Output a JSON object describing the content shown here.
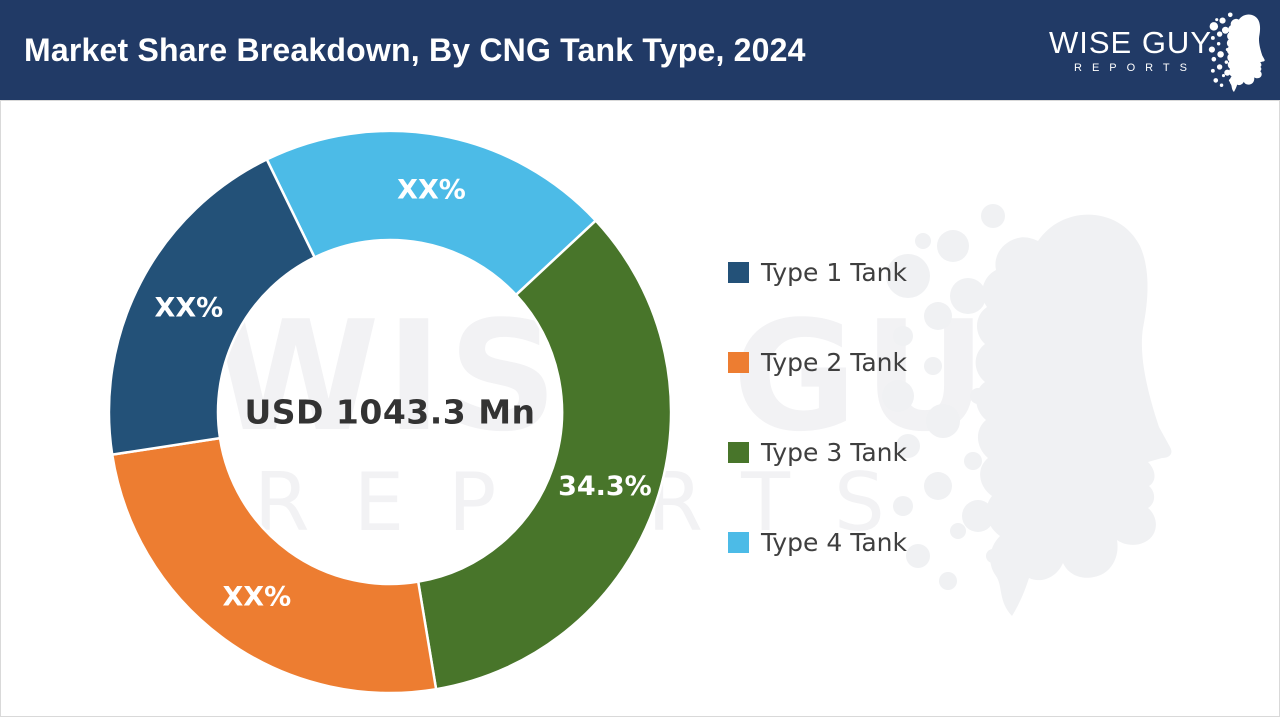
{
  "header": {
    "title": "Market Share Breakdown, By CNG Tank Type, 2024",
    "logo": {
      "line1": "WISE GUY",
      "line2": "REPORTS"
    }
  },
  "watermark": {
    "line1": "WISE GUY",
    "line2": "REPORTS"
  },
  "chart_data": {
    "type": "pie",
    "subtype": "donut",
    "title": "Market Share Breakdown, By CNG Tank Type, 2024",
    "center_label": "USD 1043.3 Mn",
    "start_angle_deg": -26,
    "legend_position": "right",
    "segments": [
      {
        "name": "Type 4 Tank",
        "label": "XX%",
        "pct": 20.3,
        "color": "#4cbbe7"
      },
      {
        "name": "Type 3 Tank",
        "label": "34.3%",
        "pct": 34.3,
        "color": "#48752a"
      },
      {
        "name": "Type 2 Tank",
        "label": "XX%",
        "pct": 25.2,
        "color": "#ed7d31"
      },
      {
        "name": "Type 1 Tank",
        "label": "XX%",
        "pct": 20.2,
        "color": "#235178"
      }
    ],
    "legend": [
      {
        "name": "Type 1 Tank",
        "color": "#235178"
      },
      {
        "name": "Type 2 Tank",
        "color": "#ed7d31"
      },
      {
        "name": "Type 3 Tank",
        "color": "#48752a"
      },
      {
        "name": "Type 4 Tank",
        "color": "#4cbbe7"
      }
    ]
  },
  "colors": {
    "header_bg": "#213a66",
    "watermark": "#f2f2f4",
    "face_watermark": "#f0f1f3",
    "legend_text": "#3f3f3f",
    "center_text": "#333333",
    "frame_border": "#d9d9d9"
  }
}
